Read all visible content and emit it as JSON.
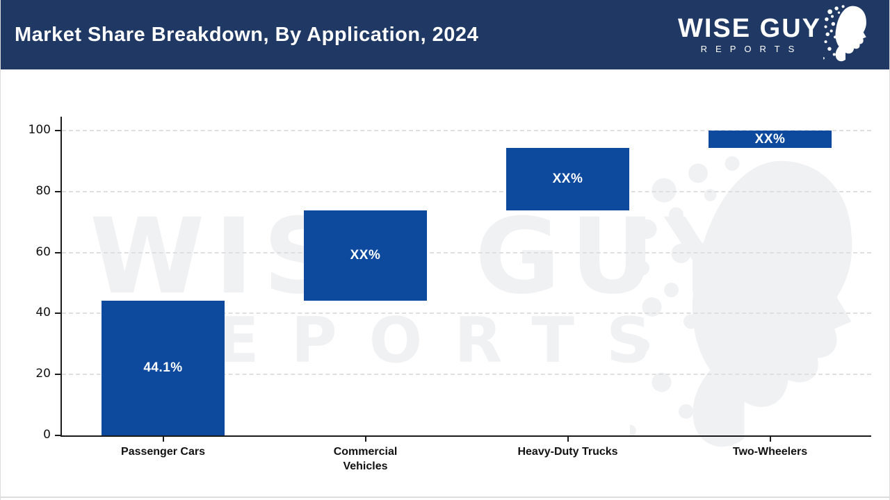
{
  "header": {
    "title": "Market Share Breakdown, By Application, 2024",
    "logo": {
      "line1": "WISE GUY",
      "line2": "REPORTS"
    }
  },
  "watermark": {
    "line1": "WISE GUY",
    "line2": "REPORTS"
  },
  "colors": {
    "header_bg": "#1f3864",
    "bar": "#0d4a9d",
    "grid": "#dfdfdf",
    "axis": "#1a1a1a",
    "tick_text": "#111111",
    "bar_label": "#ffffff",
    "watermark": "#f0f1f3"
  },
  "chart_data": {
    "type": "bar",
    "subtype": "waterfall-stacked",
    "title": "Market Share Breakdown, By Application, 2024",
    "xlabel": "",
    "ylabel": "",
    "ylim": [
      0,
      100
    ],
    "yticks": [
      0,
      20,
      40,
      60,
      80,
      100
    ],
    "grid": "horizontal-dashed",
    "legend": "none",
    "categories": [
      "Passenger Cars",
      "Commercial Vehicles",
      "Heavy-Duty Trucks",
      "Two-Wheelers"
    ],
    "category_display": [
      "Passenger Cars",
      "Commercial\nVehicles",
      "Heavy-Duty Trucks",
      "Two-Wheelers"
    ],
    "segments": [
      {
        "category": "Passenger Cars",
        "start": 0,
        "end": 44.1,
        "label": "44.1%"
      },
      {
        "category": "Commercial Vehicles",
        "start": 44.1,
        "end": 73.7,
        "label": "XX%"
      },
      {
        "category": "Heavy-Duty Trucks",
        "start": 73.7,
        "end": 94.3,
        "label": "XX%"
      },
      {
        "category": "Two-Wheelers",
        "start": 94.3,
        "end": 100,
        "label": "XX%"
      }
    ]
  }
}
